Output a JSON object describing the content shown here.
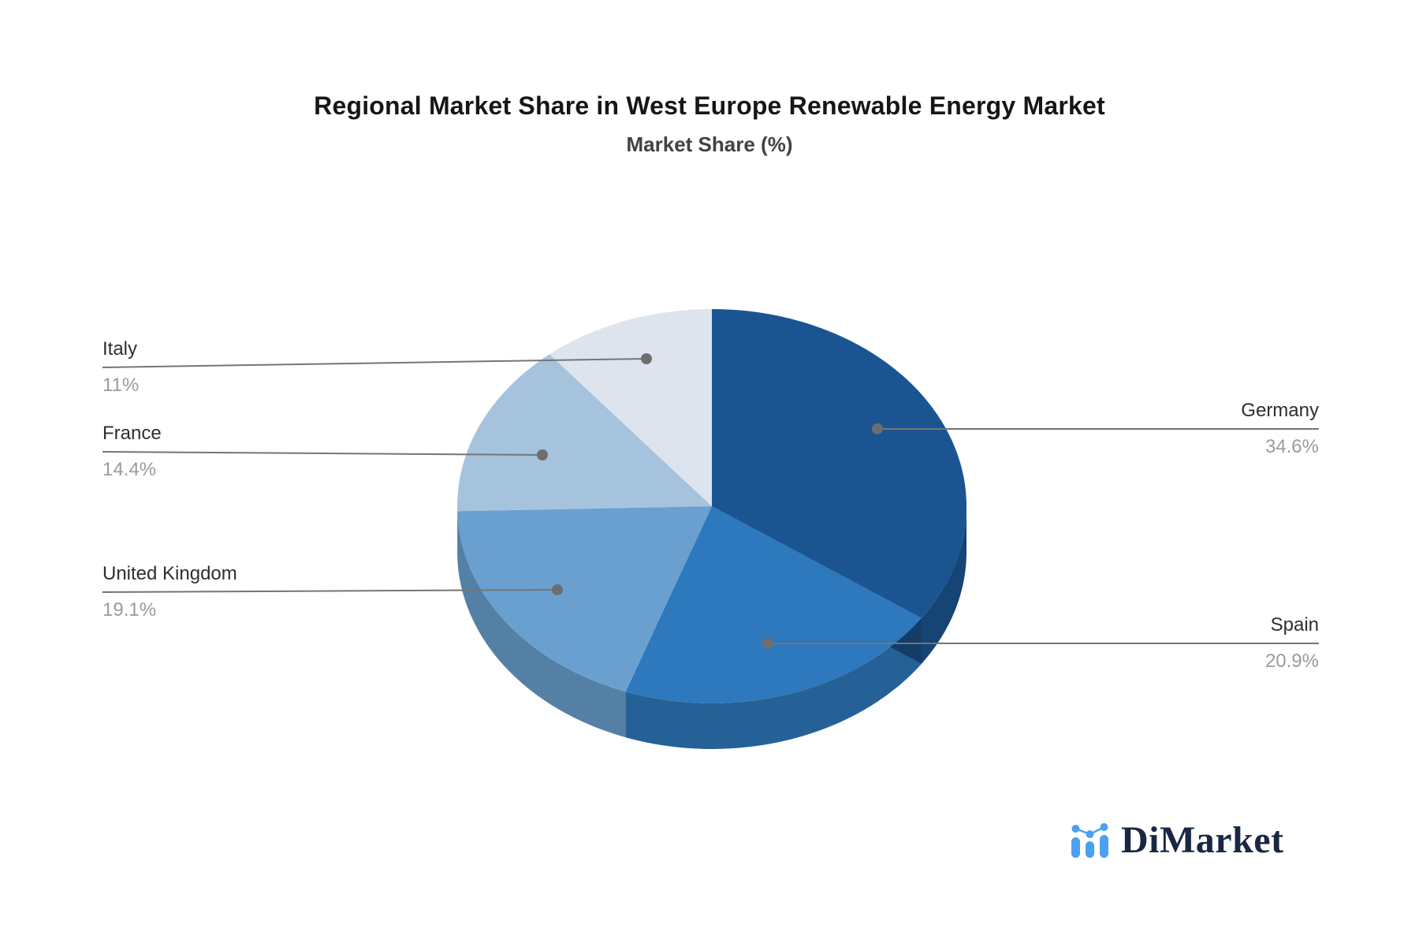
{
  "title": "Regional Market Share in West Europe Renewable Energy Market",
  "subtitle": "Market Share (%)",
  "logo": {
    "text": "DiMarket",
    "icon": "bar-line-chart-icon",
    "icon_color": "#4BA1F1",
    "text_color": "#1a2742"
  },
  "colors": {
    "background": "#ffffff",
    "connector_line": "#757575",
    "connector_dot": "#6e6e6e",
    "label_name": "#2e2e2e",
    "label_value": "#9b9b9b"
  },
  "chart_data": {
    "type": "pie",
    "style": "3d",
    "title": "Regional Market Share in West Europe Renewable Energy Market",
    "subtitle": "Market Share (%)",
    "unit": "%",
    "start_angle_deg": 0,
    "direction": "clockwise",
    "legend": "none",
    "series": [
      {
        "name": "Germany",
        "value": 34.6,
        "display": "34.6%",
        "color": "#1B5591"
      },
      {
        "name": "Spain",
        "value": 20.9,
        "display": "20.9%",
        "color": "#2E79BD"
      },
      {
        "name": "United Kingdom",
        "value": 19.1,
        "display": "19.1%",
        "color": "#6AA0D0"
      },
      {
        "name": "France",
        "value": 14.4,
        "display": "14.4%",
        "color": "#A6C3DE"
      },
      {
        "name": "Italy",
        "value": 11,
        "display": "11%",
        "color": "#DDE4EE"
      }
    ]
  }
}
